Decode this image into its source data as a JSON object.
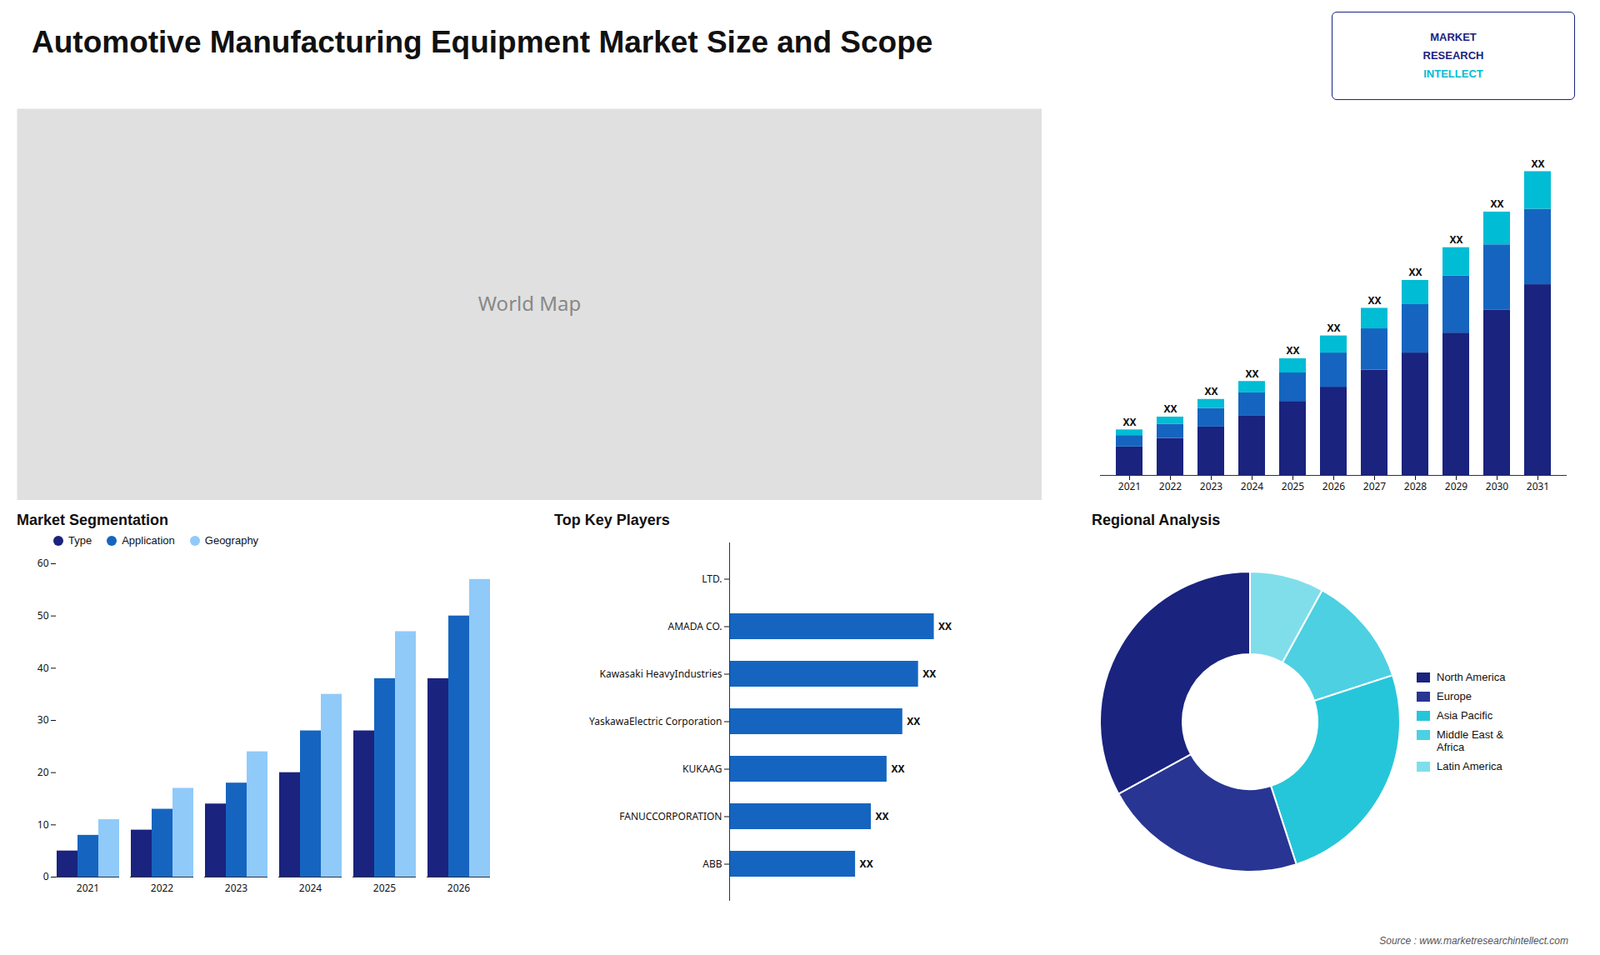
{
  "title": "Automotive Manufacturing Equipment Market Size and Scope",
  "annotations": [
    "MARKET",
    "RESEARCH",
    "INTELLECT",
    "Source : www.marketresearchintellect.com"
  ],
  "chart_data": [
    {
      "type": "map",
      "annotations": [
        "World Map"
      ],
      "xlim": [
        -180,
        180
      ],
      "ylim": [
        -60,
        85
      ],
      "tick_labels": false
    },
    {
      "type": "bar",
      "stacked": true,
      "categories": [
        "2021",
        "2022",
        "2023",
        "2024",
        "2025",
        "2026",
        "2027",
        "2028",
        "2029",
        "2030",
        "2031"
      ],
      "series": [
        {
          "color": "#1a237e",
          "values": [
            1.0,
            1.3,
            1.7,
            2.1,
            2.6,
            3.1,
            3.7,
            4.3,
            5.0,
            5.8,
            6.7
          ]
        },
        {
          "color": "#1565c0",
          "values": [
            0.4,
            0.5,
            0.65,
            0.8,
            1.0,
            1.2,
            1.45,
            1.7,
            2.0,
            2.3,
            2.65
          ]
        },
        {
          "color": "#00bcd4",
          "values": [
            0.2,
            0.25,
            0.32,
            0.4,
            0.5,
            0.6,
            0.72,
            0.85,
            1.0,
            1.15,
            1.32
          ]
        }
      ],
      "annotations": [
        "XX",
        "XX",
        "XX",
        "XX",
        "XX",
        "XX",
        "XX",
        "XX",
        "XX",
        "XX",
        "XX"
      ],
      "ylim": [
        0,
        12
      ],
      "tick_labels": "x"
    },
    {
      "type": "bar",
      "title": "Market Segmentation",
      "categories": [
        "2021",
        "2022",
        "2023",
        "2024",
        "2025",
        "2026"
      ],
      "series": [
        {
          "name": "Type",
          "color": "#1a237e",
          "values": [
            5,
            9,
            14,
            20,
            28,
            38
          ]
        },
        {
          "name": "Application",
          "color": "#1565c0",
          "values": [
            8,
            13,
            18,
            28,
            38,
            50
          ]
        },
        {
          "name": "Geography",
          "color": "#90caf9",
          "values": [
            11,
            17,
            24,
            35,
            47,
            57
          ]
        }
      ],
      "ylim": [
        0,
        60
      ],
      "yticks": [
        0,
        10,
        20,
        30,
        40,
        50,
        60
      ],
      "legend": "upper left"
    },
    {
      "type": "bar",
      "title": "Top Key Players",
      "orientation": "horizontal",
      "categories": [
        "LTD.",
        "AMADA CO.",
        "Kawasaki HeavyIndustries",
        "YaskawaElectric Corporation",
        "KUKAAG",
        "FANUCCORPORATION",
        "ABB"
      ],
      "values": [
        0,
        6.5,
        6.0,
        5.5,
        5.0,
        4.5,
        4.0
      ],
      "color": "#1565c0",
      "xlim": [
        0,
        9
      ],
      "tick_labels": "y",
      "data_labels": true,
      "value_labels": [
        null,
        "XX",
        "XX",
        "XX",
        "XX",
        "XX",
        "XX"
      ]
    },
    {
      "type": "pie",
      "title": "Regional Analysis",
      "categories": [
        "Latin America",
        "Middle East &\nAfrica",
        "Asia Pacific",
        "Europe",
        "North America"
      ],
      "values": [
        8,
        12,
        25,
        22,
        33
      ],
      "colors": [
        "#80deea",
        "#4dd0e1",
        "#26c6da",
        "#283593",
        "#1a237e"
      ],
      "legend": "right"
    }
  ]
}
